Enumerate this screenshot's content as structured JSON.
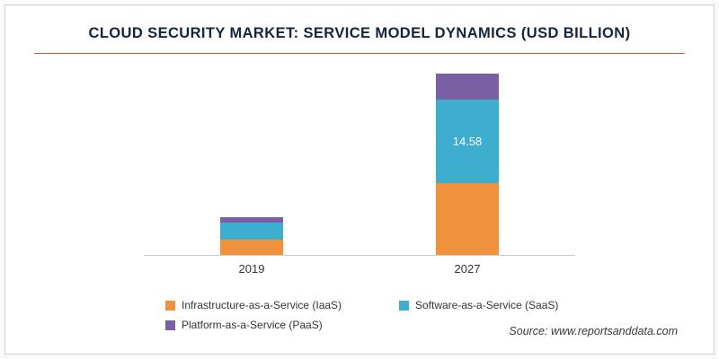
{
  "source": "Source: www.reportsanddata.com",
  "chart_data": {
    "type": "bar",
    "stacked": true,
    "title": "CLOUD SECURITY MARKET: SERVICE MODEL DYNAMICS (USD BILLION)",
    "categories": [
      "2019",
      "2027"
    ],
    "series": [
      {
        "name": "Infrastructure-as-a-Service (IaaS)",
        "color": "#F0913B",
        "values": [
          2.7,
          12.6
        ]
      },
      {
        "name": "Software-as-a-Service (SaaS)",
        "color": "#3EAECE",
        "values": [
          2.9,
          14.58
        ]
      },
      {
        "name": "Platform-as-a-Service (PaaS)",
        "color": "#7B5FA5",
        "values": [
          0.95,
          4.6
        ]
      }
    ],
    "data_labels": [
      {
        "category": "2027",
        "series": "Software-as-a-Service (SaaS)",
        "text": "14.58"
      }
    ],
    "xlabel": "",
    "ylabel": "",
    "ylim": [
      0,
      33
    ],
    "grid": false,
    "legend_position": "bottom"
  }
}
